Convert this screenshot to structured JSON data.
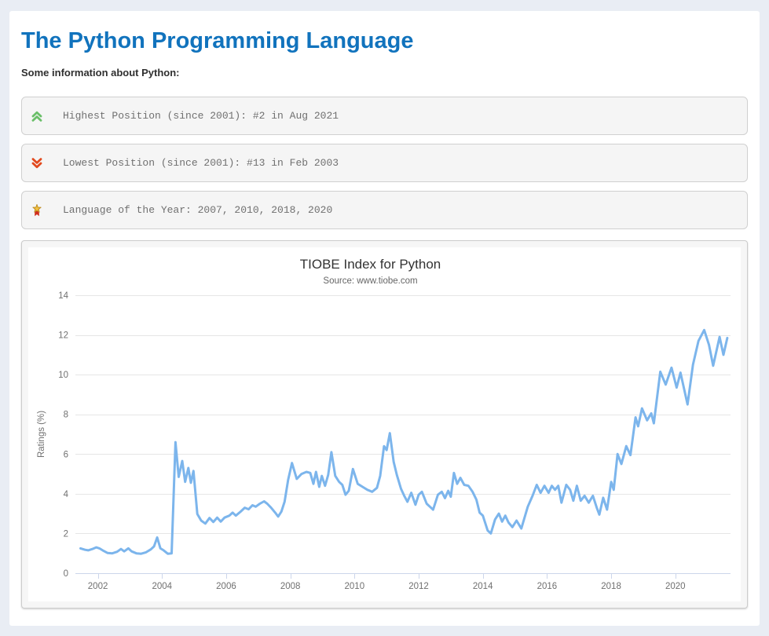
{
  "page": {
    "title": "The Python Programming Language",
    "heading": "Some information about Python:"
  },
  "info_boxes": [
    {
      "icon": "angles-up-icon",
      "icon_color": "#6abf69",
      "text": "Highest Position (since 2001): #2 in Aug 2021"
    },
    {
      "icon": "angles-down-icon",
      "icon_color": "#e2491d",
      "text": "Lowest Position (since 2001): #13 in Feb 2003"
    },
    {
      "icon": "medal-icon",
      "icon_color": "#f2c13e",
      "star_color": "#f2c13e",
      "star_stroke": "#bd8b20",
      "ribbon_color": "#d02f1f",
      "text": "Language of the Year: 2007, 2010, 2018, 2020"
    }
  ],
  "chart_data": {
    "type": "line",
    "title": "TIOBE Index for Python",
    "subtitle": "Source: www.tiobe.com",
    "xlabel": "",
    "ylabel": "Ratings (%)",
    "xlim": [
      2001.3,
      2021.72
    ],
    "ylim": [
      0,
      14
    ],
    "xticks": [
      2002,
      2004,
      2006,
      2008,
      2010,
      2012,
      2014,
      2016,
      2018,
      2020
    ],
    "yticks": [
      0,
      2,
      4,
      6,
      8,
      10,
      12,
      14
    ],
    "grid": true,
    "legend": "none",
    "colors": {
      "line": "#7cb5ec",
      "grid": "#e6e6e6",
      "axis": "#ccd6eb",
      "label": "#707070",
      "title": "#333333",
      "subtitle": "#666666"
    },
    "points": [
      [
        2001.46,
        1.25
      ],
      [
        2001.6,
        1.18
      ],
      [
        2001.7,
        1.15
      ],
      [
        2001.83,
        1.22
      ],
      [
        2001.95,
        1.3
      ],
      [
        2002.05,
        1.25
      ],
      [
        2002.15,
        1.15
      ],
      [
        2002.3,
        1.02
      ],
      [
        2002.45,
        1.0
      ],
      [
        2002.6,
        1.08
      ],
      [
        2002.72,
        1.22
      ],
      [
        2002.82,
        1.1
      ],
      [
        2002.95,
        1.25
      ],
      [
        2003.05,
        1.1
      ],
      [
        2003.2,
        1.0
      ],
      [
        2003.35,
        0.98
      ],
      [
        2003.5,
        1.05
      ],
      [
        2003.65,
        1.2
      ],
      [
        2003.75,
        1.35
      ],
      [
        2003.85,
        1.8
      ],
      [
        2003.95,
        1.25
      ],
      [
        2004.05,
        1.15
      ],
      [
        2004.18,
        0.98
      ],
      [
        2004.3,
        1.0
      ],
      [
        2004.42,
        6.6
      ],
      [
        2004.52,
        4.85
      ],
      [
        2004.63,
        5.65
      ],
      [
        2004.72,
        4.6
      ],
      [
        2004.82,
        5.3
      ],
      [
        2004.9,
        4.55
      ],
      [
        2004.98,
        5.15
      ],
      [
        2005.1,
        2.98
      ],
      [
        2005.22,
        2.65
      ],
      [
        2005.35,
        2.5
      ],
      [
        2005.48,
        2.78
      ],
      [
        2005.6,
        2.58
      ],
      [
        2005.72,
        2.8
      ],
      [
        2005.83,
        2.6
      ],
      [
        2005.95,
        2.8
      ],
      [
        2006.1,
        2.9
      ],
      [
        2006.2,
        3.05
      ],
      [
        2006.3,
        2.9
      ],
      [
        2006.45,
        3.1
      ],
      [
        2006.58,
        3.3
      ],
      [
        2006.7,
        3.22
      ],
      [
        2006.82,
        3.42
      ],
      [
        2006.92,
        3.35
      ],
      [
        2007.05,
        3.5
      ],
      [
        2007.18,
        3.62
      ],
      [
        2007.28,
        3.5
      ],
      [
        2007.4,
        3.3
      ],
      [
        2007.55,
        3.0
      ],
      [
        2007.62,
        2.85
      ],
      [
        2007.72,
        3.1
      ],
      [
        2007.82,
        3.6
      ],
      [
        2007.93,
        4.7
      ],
      [
        2008.05,
        5.55
      ],
      [
        2008.2,
        4.75
      ],
      [
        2008.35,
        5.0
      ],
      [
        2008.5,
        5.1
      ],
      [
        2008.62,
        5.05
      ],
      [
        2008.72,
        4.5
      ],
      [
        2008.8,
        5.1
      ],
      [
        2008.9,
        4.35
      ],
      [
        2008.98,
        4.9
      ],
      [
        2009.08,
        4.4
      ],
      [
        2009.18,
        4.95
      ],
      [
        2009.28,
        6.1
      ],
      [
        2009.4,
        4.9
      ],
      [
        2009.52,
        4.6
      ],
      [
        2009.62,
        4.45
      ],
      [
        2009.72,
        3.95
      ],
      [
        2009.82,
        4.15
      ],
      [
        2009.95,
        5.25
      ],
      [
        2010.1,
        4.5
      ],
      [
        2010.25,
        4.35
      ],
      [
        2010.4,
        4.2
      ],
      [
        2010.55,
        4.1
      ],
      [
        2010.7,
        4.3
      ],
      [
        2010.8,
        4.9
      ],
      [
        2010.92,
        6.4
      ],
      [
        2011.0,
        6.2
      ],
      [
        2011.1,
        7.05
      ],
      [
        2011.22,
        5.6
      ],
      [
        2011.32,
        4.95
      ],
      [
        2011.45,
        4.25
      ],
      [
        2011.55,
        3.9
      ],
      [
        2011.65,
        3.6
      ],
      [
        2011.77,
        4.05
      ],
      [
        2011.9,
        3.45
      ],
      [
        2012.0,
        3.95
      ],
      [
        2012.1,
        4.1
      ],
      [
        2012.25,
        3.5
      ],
      [
        2012.35,
        3.35
      ],
      [
        2012.45,
        3.2
      ],
      [
        2012.6,
        3.95
      ],
      [
        2012.72,
        4.1
      ],
      [
        2012.82,
        3.78
      ],
      [
        2012.92,
        4.15
      ],
      [
        2013.0,
        3.85
      ],
      [
        2013.1,
        5.05
      ],
      [
        2013.2,
        4.5
      ],
      [
        2013.3,
        4.8
      ],
      [
        2013.42,
        4.45
      ],
      [
        2013.55,
        4.4
      ],
      [
        2013.68,
        4.1
      ],
      [
        2013.8,
        3.7
      ],
      [
        2013.9,
        3.05
      ],
      [
        2014.0,
        2.9
      ],
      [
        2014.15,
        2.15
      ],
      [
        2014.25,
        2.0
      ],
      [
        2014.38,
        2.7
      ],
      [
        2014.5,
        3.0
      ],
      [
        2014.6,
        2.6
      ],
      [
        2014.7,
        2.9
      ],
      [
        2014.8,
        2.55
      ],
      [
        2014.92,
        2.32
      ],
      [
        2015.05,
        2.65
      ],
      [
        2015.2,
        2.25
      ],
      [
        2015.4,
        3.35
      ],
      [
        2015.55,
        3.9
      ],
      [
        2015.68,
        4.45
      ],
      [
        2015.8,
        4.05
      ],
      [
        2015.92,
        4.4
      ],
      [
        2016.05,
        4.05
      ],
      [
        2016.15,
        4.4
      ],
      [
        2016.25,
        4.2
      ],
      [
        2016.35,
        4.4
      ],
      [
        2016.45,
        3.55
      ],
      [
        2016.6,
        4.45
      ],
      [
        2016.72,
        4.2
      ],
      [
        2016.82,
        3.65
      ],
      [
        2016.93,
        4.4
      ],
      [
        2017.05,
        3.65
      ],
      [
        2017.17,
        3.9
      ],
      [
        2017.3,
        3.55
      ],
      [
        2017.43,
        3.9
      ],
      [
        2017.55,
        3.3
      ],
      [
        2017.63,
        2.95
      ],
      [
        2017.75,
        3.8
      ],
      [
        2017.87,
        3.2
      ],
      [
        2018.0,
        4.6
      ],
      [
        2018.08,
        4.2
      ],
      [
        2018.2,
        6.0
      ],
      [
        2018.32,
        5.5
      ],
      [
        2018.47,
        6.4
      ],
      [
        2018.6,
        5.95
      ],
      [
        2018.76,
        7.85
      ],
      [
        2018.84,
        7.4
      ],
      [
        2018.96,
        8.3
      ],
      [
        2019.12,
        7.7
      ],
      [
        2019.25,
        8.05
      ],
      [
        2019.33,
        7.55
      ],
      [
        2019.53,
        10.15
      ],
      [
        2019.7,
        9.5
      ],
      [
        2019.88,
        10.35
      ],
      [
        2020.04,
        9.35
      ],
      [
        2020.16,
        10.1
      ],
      [
        2020.38,
        8.5
      ],
      [
        2020.55,
        10.5
      ],
      [
        2020.72,
        11.7
      ],
      [
        2020.9,
        12.25
      ],
      [
        2021.05,
        11.5
      ],
      [
        2021.18,
        10.45
      ],
      [
        2021.38,
        11.9
      ],
      [
        2021.5,
        11.0
      ],
      [
        2021.62,
        11.85
      ]
    ]
  }
}
